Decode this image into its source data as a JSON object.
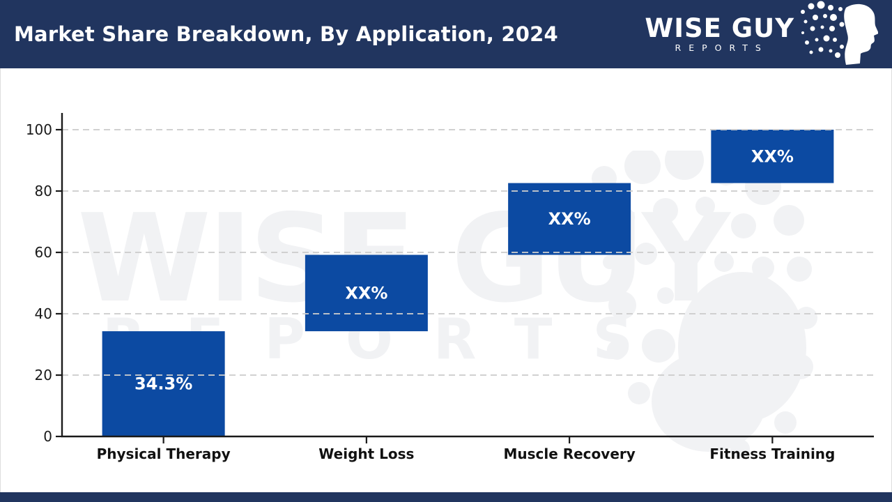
{
  "header": {
    "title": "Market Share Breakdown, By Application, 2024",
    "logo": {
      "brand_top": "WISE GUY",
      "brand_bottom": "REPORTS"
    }
  },
  "watermark": {
    "text_large": "WISE GUY",
    "text_small": "REPORTS"
  },
  "colors": {
    "header_bg": "#21355F",
    "footer_bg": "#21355F",
    "bar": "#0C4AA2",
    "bar_label": "#FFFFFF",
    "axis": "#1A1A1A",
    "tick_label": "#1A1A1A",
    "gridline": "#CDCDCD",
    "watermark": "#F1F2F4"
  },
  "chart_data": {
    "type": "bar",
    "subtype": "waterfall",
    "title": "Market Share Breakdown, By Application, 2024",
    "categories": [
      "Physical Therapy",
      "Weight Loss",
      "Muscle Recovery",
      "Fitness Training"
    ],
    "bars": [
      {
        "category": "Physical Therapy",
        "start": 0,
        "end": 34.3,
        "label": "34.3%"
      },
      {
        "category": "Weight Loss",
        "start": 34.3,
        "end": 59.2,
        "label": "XX%"
      },
      {
        "category": "Muscle Recovery",
        "start": 59.2,
        "end": 82.6,
        "label": "XX%"
      },
      {
        "category": "Fitness Training",
        "start": 82.6,
        "end": 100,
        "label": "XX%"
      }
    ],
    "xlabel": "",
    "ylabel": "",
    "ylim": [
      0,
      105
    ],
    "yticks": [
      0,
      20,
      40,
      60,
      80,
      100
    ],
    "grid": "dashed horizontal",
    "legend": "none"
  }
}
